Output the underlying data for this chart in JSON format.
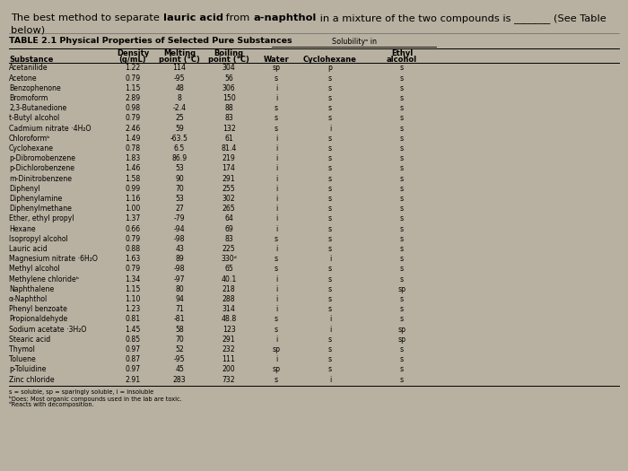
{
  "title_parts": [
    {
      "text": "The best method to separate ",
      "bold": false
    },
    {
      "text": "lauric acid",
      "bold": true
    },
    {
      "text": " from ",
      "bold": false
    },
    {
      "text": "a-naphthol",
      "bold": true
    },
    {
      "text": " in a mixture of the two compounds is _______ (See Table",
      "bold": false
    }
  ],
  "title_line2": "below)",
  "table_title": "TABLE 2.1 Physical Properties of Selected Pure Substances",
  "solubility_header": "Solubilityᵃ in",
  "col_header1": [
    "",
    "Density",
    "Melting",
    "Boiling",
    "",
    "",
    "Ethyl"
  ],
  "col_header2": [
    "Substance",
    "(g/mL)",
    "point (°C)",
    "point (°C)",
    "Water",
    "Cyclohexane",
    "alcohol"
  ],
  "rows": [
    [
      "Acetanilide",
      "1.22",
      "114",
      "304",
      "sp",
      "p",
      "s"
    ],
    [
      "Acetone",
      "0.79",
      "-95",
      "56",
      "s",
      "s",
      "s"
    ],
    [
      "Benzophenone",
      "1.15",
      "48",
      "306",
      "i",
      "s",
      "s"
    ],
    [
      "Bromoform",
      "2.89",
      "8",
      "150",
      "i",
      "s",
      "s"
    ],
    [
      "2,3-Butanedione",
      "0.98",
      "-2.4",
      "88",
      "s",
      "s",
      "s"
    ],
    [
      "t-Butyl alcohol",
      "0.79",
      "25",
      "83",
      "s",
      "s",
      "s"
    ],
    [
      "Cadmium nitrate ·4H₂O",
      "2.46",
      "59",
      "132",
      "s",
      "i",
      "s"
    ],
    [
      "Chloroformᵇ",
      "1.49",
      "-63.5",
      "61",
      "i",
      "s",
      "s"
    ],
    [
      "Cyclohexane",
      "0.78",
      "6.5",
      "81.4",
      "i",
      "s",
      "s"
    ],
    [
      "p-Dibromobenzene",
      "1.83",
      "86.9",
      "219",
      "i",
      "s",
      "s"
    ],
    [
      "p-Dichlorobenzene",
      "1.46",
      "53",
      "174",
      "i",
      "s",
      "s"
    ],
    [
      "m-Dinitrobenzene",
      "1.58",
      "90",
      "291",
      "i",
      "s",
      "s"
    ],
    [
      "Diphenyl",
      "0.99",
      "70",
      "255",
      "i",
      "s",
      "s"
    ],
    [
      "Diphenylamine",
      "1.16",
      "53",
      "302",
      "i",
      "s",
      "s"
    ],
    [
      "Diphenylmethane",
      "1.00",
      "27",
      "265",
      "i",
      "s",
      "s"
    ],
    [
      "Ether, ethyl propyl",
      "1.37",
      "-79",
      "64",
      "i",
      "s",
      "s"
    ],
    [
      "Hexane",
      "0.66",
      "-94",
      "69",
      "i",
      "s",
      "s"
    ],
    [
      "Isopropyl alcohol",
      "0.79",
      "-98",
      "83",
      "s",
      "s",
      "s"
    ],
    [
      "Lauric acid",
      "0.88",
      "43",
      "225",
      "i",
      "s",
      "s"
    ],
    [
      "Magnesium nitrate ·6H₂O",
      "1.63",
      "89",
      "330ᵈ",
      "s",
      "i",
      "s"
    ],
    [
      "Methyl alcohol",
      "0.79",
      "-98",
      "65",
      "s",
      "s",
      "s"
    ],
    [
      "Methylene chlorideᵇ",
      "1.34",
      "-97",
      "40.1",
      "i",
      "s",
      "s"
    ],
    [
      "Naphthalene",
      "1.15",
      "80",
      "218",
      "i",
      "s",
      "sp"
    ],
    [
      "α-Naphthol",
      "1.10",
      "94",
      "288",
      "i",
      "s",
      "s"
    ],
    [
      "Phenyl benzoate",
      "1.23",
      "71",
      "314",
      "i",
      "s",
      "s"
    ],
    [
      "Propionaldehyde",
      "0.81",
      "-81",
      "48.8",
      "s",
      "i",
      "s"
    ],
    [
      "Sodium acetate ·3H₂O",
      "1.45",
      "58",
      "123",
      "s",
      "i",
      "sp"
    ],
    [
      "Stearic acid",
      "0.85",
      "70",
      "291",
      "i",
      "s",
      "sp"
    ],
    [
      "Thymol",
      "0.97",
      "52",
      "232",
      "sp",
      "s",
      "s"
    ],
    [
      "Toluene",
      "0.87",
      "-95",
      "111",
      "i",
      "s",
      "s"
    ],
    [
      "p-Toluidine",
      "0.97",
      "45",
      "200",
      "sp",
      "s",
      "s"
    ],
    [
      "Zinc chloride",
      "2.91",
      "283",
      "732",
      "s",
      "i",
      "s"
    ]
  ],
  "footnotes": [
    "s = soluble, sp = sparingly soluble, i = insoluble",
    "ᵇDoes: Most organic compounds used in the lab are toxic.",
    "ᵈReacts with decomposition."
  ],
  "bg_color": "#b8b0a0",
  "text_color": "#000000"
}
